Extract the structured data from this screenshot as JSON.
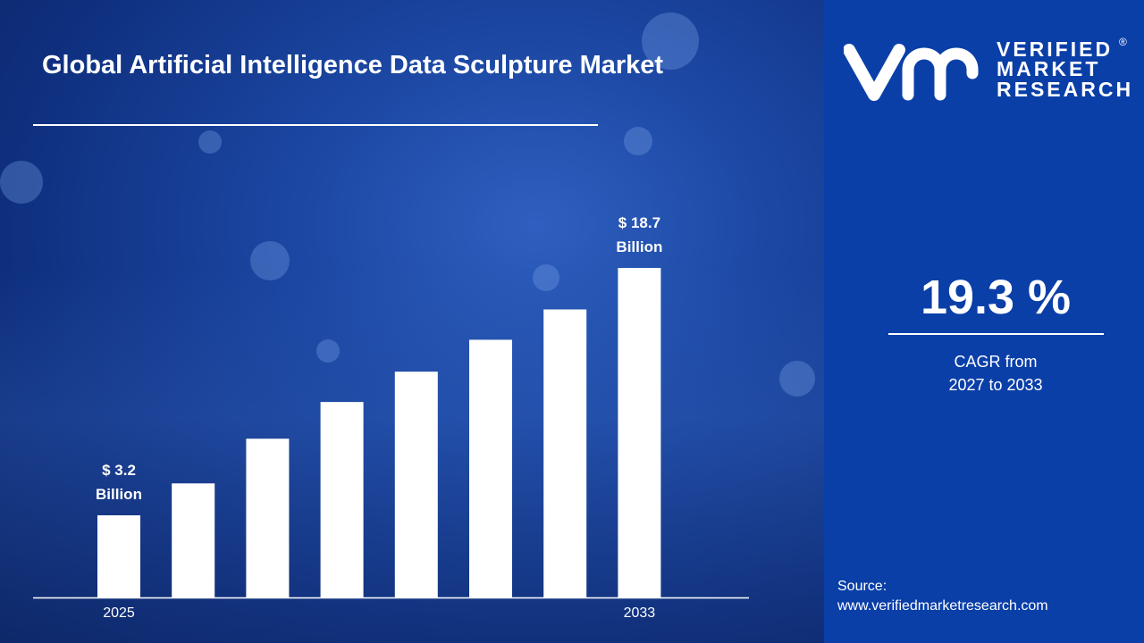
{
  "title": "Global Artificial Intelligence Data Sculpture Market",
  "logo": {
    "line1": "VERIFIED",
    "line2": "MARKET",
    "line3": "RESEARCH",
    "mark": "vmr",
    "registered": "®"
  },
  "cagr": {
    "value": "19.3 %",
    "label_line1": "CAGR from",
    "label_line2": "2027 to 2033"
  },
  "source": {
    "label": "Source:",
    "url": "www.verifiedmarketresearch.com"
  },
  "colors": {
    "bar": "#ffffff",
    "right_panel": "#0a3fa8",
    "background": "#1a45a0"
  },
  "chart_data": {
    "type": "bar",
    "title": "Global Artificial Intelligence Data Sculpture Market",
    "categories": [
      "2025",
      "",
      "",
      "",
      "",
      "",
      "",
      "2033"
    ],
    "values": [
      3.2,
      5.2,
      8.0,
      10.3,
      12.2,
      14.2,
      16.1,
      18.7
    ],
    "data_labels": [
      {
        "index": 0,
        "line1": "$ 3.2",
        "line2": "Billion"
      },
      {
        "index": 7,
        "line1": "$ 18.7",
        "line2": "Billion"
      }
    ],
    "unit": "USD Billion",
    "grid": false,
    "legend": "none"
  }
}
